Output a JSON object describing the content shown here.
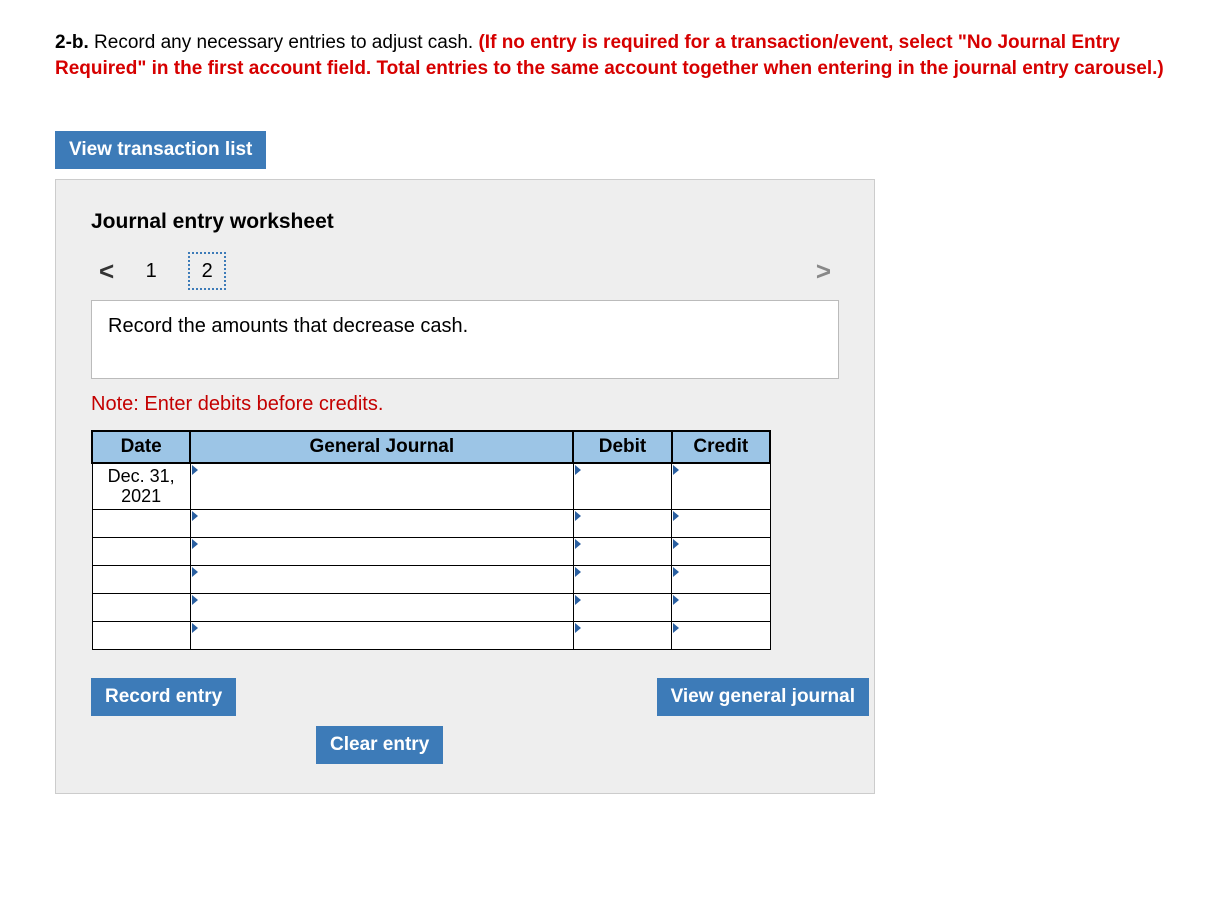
{
  "question": {
    "number": "2-b.",
    "prompt_black": " Record any necessary entries to adjust cash. ",
    "prompt_red": "(If no entry is required for a transaction/event, select \"No Journal Entry Required\" in the first account field. Total entries to the same account together when entering in the journal entry carousel.)"
  },
  "buttons": {
    "view_transaction_list": "View transaction list",
    "record_entry": "Record entry",
    "clear_entry": "Clear entry",
    "view_general_journal": "View general journal"
  },
  "worksheet": {
    "title": "Journal entry worksheet",
    "pager": {
      "prev": "<",
      "next": ">",
      "pages": [
        "1",
        "2"
      ],
      "active_index": 1
    },
    "instruction": "Record the amounts that decrease cash.",
    "note": "Note: Enter debits before credits.",
    "table": {
      "headers": {
        "date": "Date",
        "general_journal": "General Journal",
        "debit": "Debit",
        "credit": "Credit"
      },
      "rows": [
        {
          "date": "Dec. 31, 2021",
          "gj": "",
          "debit": "",
          "credit": ""
        },
        {
          "date": "",
          "gj": "",
          "debit": "",
          "credit": ""
        },
        {
          "date": "",
          "gj": "",
          "debit": "",
          "credit": ""
        },
        {
          "date": "",
          "gj": "",
          "debit": "",
          "credit": ""
        },
        {
          "date": "",
          "gj": "",
          "debit": "",
          "credit": ""
        },
        {
          "date": "",
          "gj": "",
          "debit": "",
          "credit": ""
        }
      ]
    }
  },
  "colors": {
    "button_bg": "#3d7bb8",
    "panel_bg": "#eeeeee",
    "red_text": "#d60000",
    "note_red": "#c40000",
    "header_bg": "#9cc5e6",
    "marker": "#2a5fa0"
  }
}
